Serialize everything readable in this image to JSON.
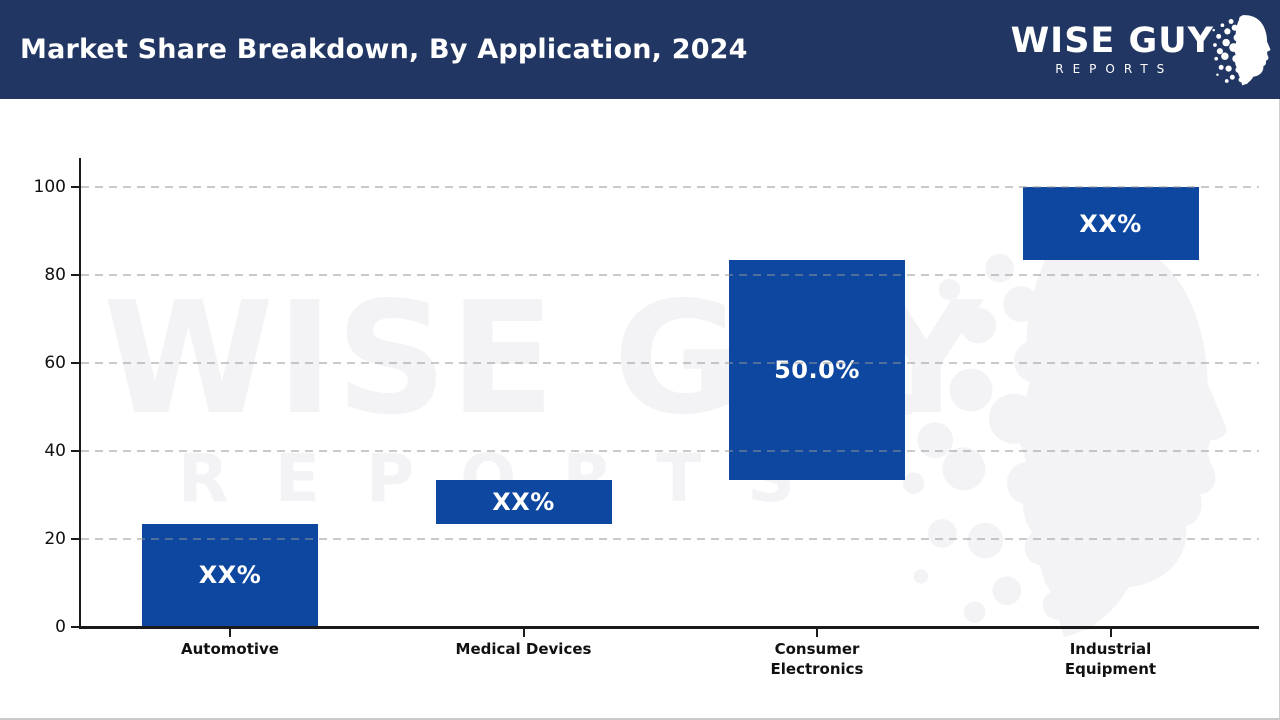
{
  "header": {
    "title": "Market Share Breakdown, By Application, 2024",
    "background_color": "#213663",
    "logo": {
      "line1": "WISE GUY",
      "line2": "REPORTS"
    }
  },
  "watermark": {
    "line1": "WISE GUY",
    "line2": "REPORTS"
  },
  "chart_data": {
    "type": "bar",
    "subtype": "floating-segment (waterfall-style market share)",
    "title": "Market Share Breakdown, By Application, 2024",
    "categories": [
      "Automotive",
      "Medical Devices",
      "Consumer Electronics",
      "Industrial Equipment"
    ],
    "category_lines": [
      [
        "Automotive"
      ],
      [
        "Medical Devices"
      ],
      [
        "Consumer",
        "Electronics"
      ],
      [
        "Industrial",
        "Equipment"
      ]
    ],
    "segments": [
      {
        "category": "Automotive",
        "start": 0,
        "end": 23.3,
        "value": 23.3,
        "label": "XX%"
      },
      {
        "category": "Medical Devices",
        "start": 23.3,
        "end": 33.3,
        "value": 10.0,
        "label": "XX%"
      },
      {
        "category": "Consumer Electronics",
        "start": 33.3,
        "end": 83.3,
        "value": 50.0,
        "label": "50.0%"
      },
      {
        "category": "Industrial Equipment",
        "start": 83.3,
        "end": 100,
        "value": 16.7,
        "label": "XX%"
      }
    ],
    "xlabel": "",
    "ylabel": "",
    "ylim": [
      0,
      100
    ],
    "yticks": [
      0,
      20,
      40,
      60,
      80,
      100
    ],
    "grid": "horizontal dashed, drawn over bars",
    "legend": "none",
    "bar_color": "#0d47a0",
    "bar_label_color": "#ffffff",
    "axis_color": "#1a1a1a",
    "gridline_base_color": "#d8d8d8"
  }
}
